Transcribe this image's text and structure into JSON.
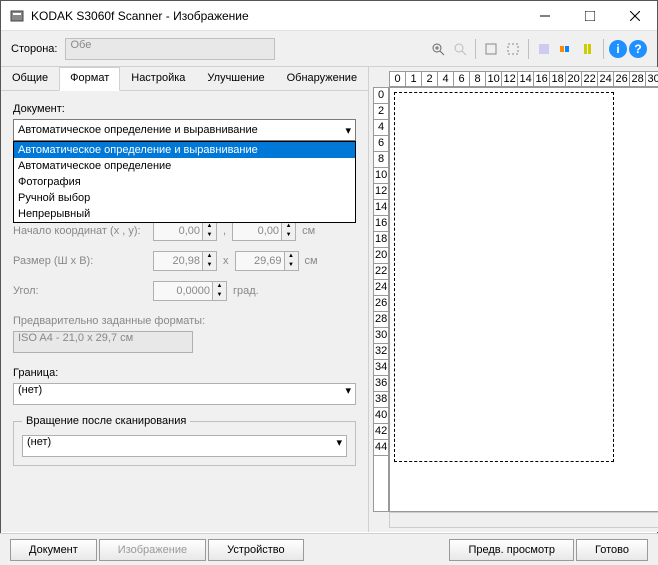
{
  "window": {
    "title": "KODAK S3060f Scanner - Изображение"
  },
  "toolbar": {
    "side_label": "Сторона:",
    "side_value": "Обе"
  },
  "tabs": {
    "items": [
      "Общие",
      "Формат",
      "Настройка",
      "Улучшение",
      "Обнаружение"
    ],
    "active": 1
  },
  "document": {
    "label": "Документ:",
    "value": "Автоматическое определение и выравнивание",
    "options": [
      "Автоматическое определение и выравнивание",
      "Автоматическое определение",
      "Фотография",
      "Ручной выбор",
      "Непрерывный"
    ]
  },
  "origin": {
    "label": "Начало координат (x , y):",
    "x": "0,00",
    "y": "0,00",
    "unit": "см"
  },
  "size": {
    "label": "Размер (Ш x В):",
    "w": "20,98",
    "h": "29,69",
    "unit": "см"
  },
  "angle": {
    "label": "Угол:",
    "value": "0,0000",
    "unit": "град."
  },
  "preset": {
    "label": "Предварительно заданные форматы:",
    "value": "ISO A4 - 21,0 x 29,7 см"
  },
  "border": {
    "label": "Граница:",
    "value": "(нет)"
  },
  "rotation": {
    "legend": "Вращение после сканирования",
    "value": "(нет)"
  },
  "ruler": {
    "h": [
      "0",
      "1",
      "2",
      "4",
      "6",
      "8",
      "10",
      "12",
      "14",
      "16",
      "18",
      "20",
      "22",
      "24",
      "26",
      "28",
      "30"
    ],
    "v": [
      "0",
      "2",
      "4",
      "6",
      "8",
      "10",
      "12",
      "14",
      "16",
      "18",
      "20",
      "22",
      "24",
      "26",
      "28",
      "30",
      "32",
      "34",
      "36",
      "38",
      "40",
      "42",
      "44"
    ]
  },
  "buttons": {
    "document": "Документ",
    "image": "Изображение",
    "device": "Устройство",
    "preview": "Предв. просмотр",
    "done": "Готово"
  }
}
